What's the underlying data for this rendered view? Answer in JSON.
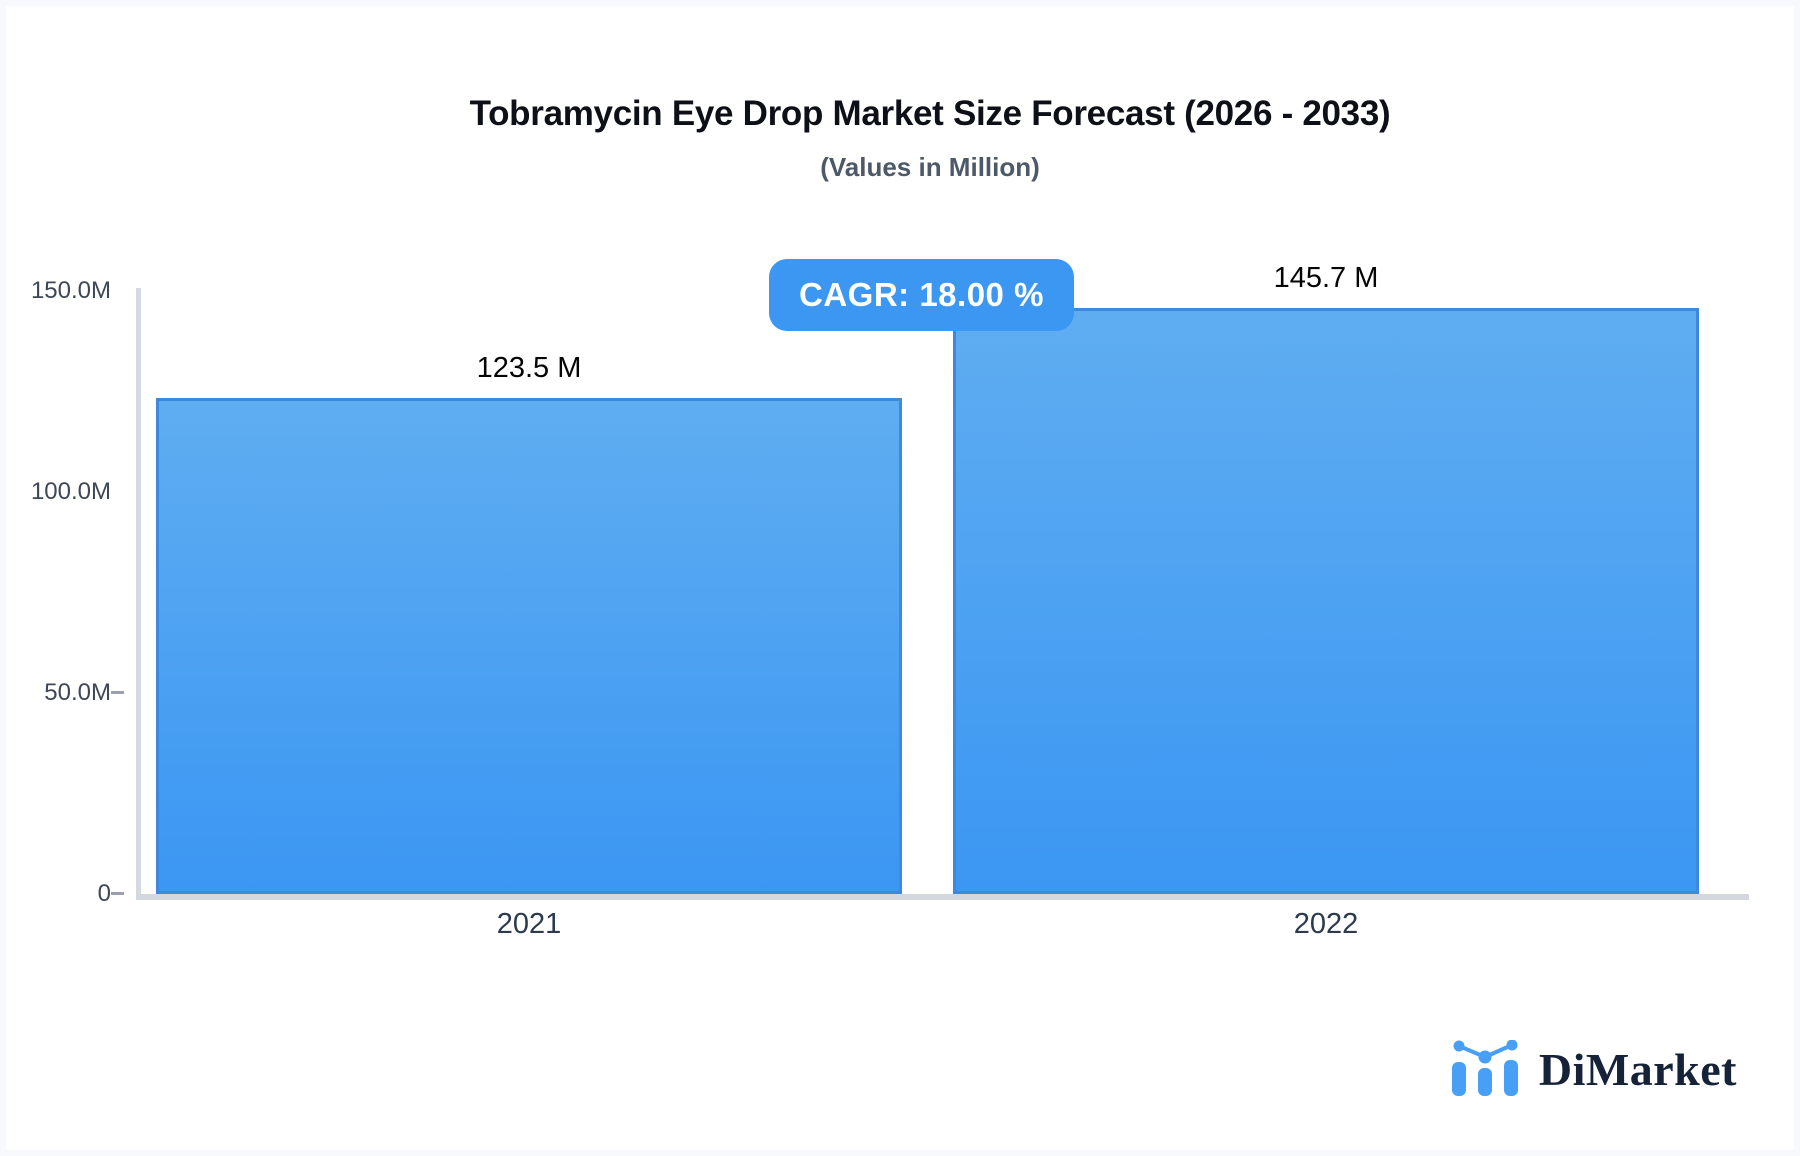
{
  "header": {
    "title": "Tobramycin Eye Drop Market Size Forecast (2026 - 2033)",
    "subtitle": "(Values in Million)"
  },
  "badge": {
    "label": "CAGR: 18.00 %"
  },
  "chart_data": {
    "type": "bar",
    "title": "Tobramycin Eye Drop Market Size Forecast (2026 - 2033)",
    "subtitle": "(Values in Million)",
    "unit": "Million",
    "categories": [
      "2021",
      "2022"
    ],
    "values": [
      123.5,
      145.7
    ],
    "value_labels": [
      "123.5 M",
      "145.7 M"
    ],
    "cagr": "18.00 %",
    "ylim": [
      0,
      150
    ],
    "yticks": [
      {
        "label": "150.0M",
        "value": 150,
        "dash": false
      },
      {
        "label": "100.0M",
        "value": 100,
        "dash": false
      },
      {
        "label": "50.0M",
        "value": 50,
        "dash": true
      },
      {
        "label": "0",
        "value": 0,
        "dash": true
      }
    ],
    "grid": false,
    "legend": false
  },
  "footer": {
    "logo_text": "DiMarket"
  },
  "colors": {
    "bar_fill_top": "#5fadf1",
    "bar_fill_bottom": "#3b97f3",
    "bar_border": "#3f88dc",
    "badge_bg": "#3b97f2",
    "axis_line": "#d6d9e0",
    "tick_dash": "#9aa1ad",
    "logo_blue": "#47a0f5",
    "logo_navy": "#152238"
  }
}
